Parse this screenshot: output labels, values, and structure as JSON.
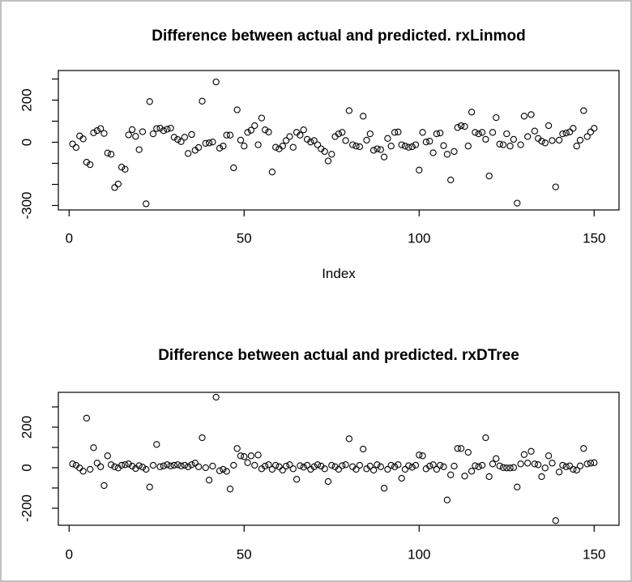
{
  "window": {
    "background": "#ffffff",
    "frame_color": "#c0c0c0",
    "point_color": "#000000",
    "axis_color": "#000000"
  },
  "chart_data": [
    {
      "type": "scatter",
      "title": "Difference between actual and predicted. rxLinmod",
      "xlabel": "Index",
      "ylabel": "",
      "marker": "open-circle",
      "grid": false,
      "legend": null,
      "x_ticks": [
        0,
        50,
        100,
        150
      ],
      "x_tick_labels": [
        "0",
        "50",
        "100",
        "150"
      ],
      "y_ticks": [
        300,
        200,
        100,
        0,
        -100,
        -200,
        -300
      ],
      "y_tick_labels": [
        "",
        "200",
        "",
        "0",
        "",
        "",
        "-300"
      ],
      "xlim": [
        -5,
        156
      ],
      "ylim": [
        -320,
        310
      ],
      "x_description": "x = observation index 1..150",
      "y": [
        -8,
        -25,
        30,
        16,
        -95,
        -106,
        45,
        55,
        65,
        42,
        -51,
        -57,
        -215,
        -198,
        -118,
        -128,
        35,
        60,
        28,
        -35,
        50,
        -292,
        193,
        40,
        65,
        67,
        55,
        62,
        67,
        24,
        13,
        3,
        24,
        -53,
        37,
        -38,
        -25,
        195,
        -5,
        -3,
        1,
        286,
        -28,
        -18,
        34,
        34,
        -121,
        154,
        10,
        -18,
        47,
        57,
        79,
        -12,
        115,
        59,
        49,
        -141,
        -24,
        -31,
        -18,
        8,
        27,
        -24,
        47,
        34,
        59,
        14,
        1,
        8,
        -12,
        -31,
        -44,
        -89,
        -57,
        27,
        40,
        47,
        8,
        150,
        -12,
        -18,
        -21,
        124,
        10,
        40,
        -38,
        -31,
        -35,
        -70,
        18,
        -18,
        47,
        49,
        -12,
        -18,
        -24,
        -21,
        -12,
        -132,
        47,
        1,
        5,
        -50,
        40,
        44,
        -16,
        -57,
        -179,
        -44,
        70,
        79,
        75,
        -18,
        143,
        47,
        40,
        47,
        14,
        -160,
        47,
        117,
        -9,
        -12,
        40,
        -18,
        14,
        -289,
        -12,
        124,
        27,
        131,
        53,
        18,
        5,
        -3,
        79,
        8,
        -212,
        10,
        40,
        44,
        49,
        66,
        -18,
        10,
        150,
        27,
        49,
        66
      ]
    },
    {
      "type": "scatter",
      "title": "Difference between actual and predicted. rxDTree",
      "xlabel": "",
      "ylabel": "",
      "marker": "open-circle",
      "grid": false,
      "legend": null,
      "x_ticks": [
        0,
        50,
        100,
        150
      ],
      "x_tick_labels": [
        "0",
        "50",
        "100",
        "150"
      ],
      "y_ticks": [
        300,
        200,
        100,
        0,
        -100,
        -200
      ],
      "y_tick_labels": [
        "",
        "200",
        "",
        "0",
        "",
        "-200"
      ],
      "xlim": [
        -5,
        156
      ],
      "ylim": [
        -275,
        372
      ],
      "x_description": "x = observation index 1..150",
      "y": [
        19,
        12,
        -1,
        -17,
        245,
        -8,
        99,
        23,
        5,
        -88,
        59,
        15,
        5,
        -1,
        12,
        15,
        19,
        8,
        -4,
        10,
        3,
        -8,
        -95,
        12,
        115,
        5,
        9,
        15,
        9,
        12,
        15,
        9,
        12,
        5,
        15,
        23,
        5,
        148,
        0,
        -61,
        8,
        348,
        -15,
        -8,
        -18,
        -105,
        12,
        95,
        59,
        55,
        25,
        59,
        12,
        63,
        -5,
        8,
        15,
        -8,
        12,
        5,
        -12,
        8,
        15,
        -5,
        -57,
        10,
        3,
        12,
        -8,
        5,
        15,
        8,
        -5,
        -68,
        12,
        5,
        -8,
        10,
        15,
        143,
        5,
        -8,
        12,
        92,
        -5,
        8,
        -12,
        15,
        5,
        -101,
        -8,
        12,
        5,
        15,
        -52,
        -8,
        10,
        3,
        12,
        63,
        59,
        -5,
        8,
        15,
        -8,
        12,
        5,
        -159,
        -35,
        8,
        95,
        95,
        -41,
        76,
        -17,
        10,
        5,
        12,
        148,
        -44,
        19,
        45,
        9,
        1,
        -1,
        -1,
        1,
        -95,
        19,
        65,
        23,
        81,
        19,
        15,
        -44,
        -1,
        59,
        23,
        -261,
        -21,
        12,
        5,
        9,
        -8,
        -12,
        9,
        95,
        19,
        23,
        25
      ]
    }
  ]
}
